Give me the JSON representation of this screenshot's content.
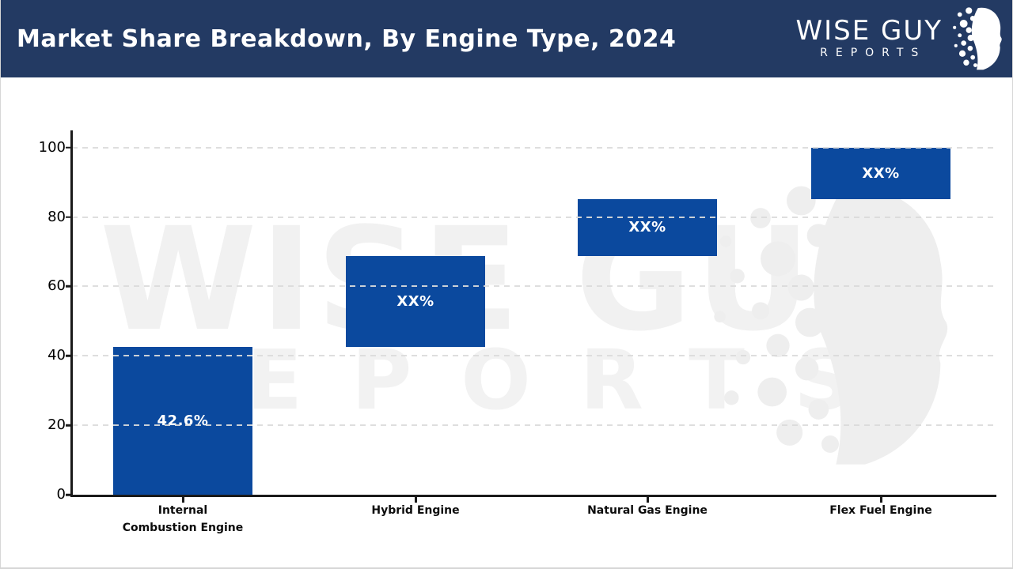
{
  "header": {
    "title": "Market Share Breakdown, By Engine Type, 2024",
    "logo": {
      "line1": "WISE GUY",
      "line2": "REPORTS"
    }
  },
  "watermark": {
    "line1": "WISE GUY",
    "line2": "REPORTS"
  },
  "theme": {
    "header_bg": "#233a63",
    "bar_color": "#0b499e",
    "axis_color": "#1a1a1a",
    "gridline_color": "#d9d9d9",
    "watermark_color": "#f1f1f1",
    "bar_label_color": "#ffffff"
  },
  "chart_data": {
    "type": "bar",
    "variant": "waterfall",
    "title": "Market Share Breakdown, By Engine Type, 2024",
    "xlabel": "",
    "ylabel": "",
    "categories": [
      "Internal Combustion Engine",
      "Hybrid Engine",
      "Natural Gas Engine",
      "Flex Fuel Engine"
    ],
    "category_lines": [
      [
        "Internal",
        "Combustion Engine"
      ],
      [
        "Hybrid Engine"
      ],
      [
        "Natural Gas Engine"
      ],
      [
        "Flex Fuel Engine"
      ]
    ],
    "segments": [
      {
        "category": "Internal Combustion Engine",
        "start": 0,
        "end": 42.6,
        "value_label": "42.6%"
      },
      {
        "category": "Hybrid Engine",
        "start": 42.6,
        "end": 68.8,
        "value_label": "XX%"
      },
      {
        "category": "Natural Gas Engine",
        "start": 68.8,
        "end": 85.2,
        "value_label": "XX%"
      },
      {
        "category": "Flex Fuel Engine",
        "start": 85.2,
        "end": 100,
        "value_label": "XX%"
      }
    ],
    "yticks": [
      0,
      20,
      40,
      60,
      80,
      100
    ],
    "ytick_labels": [
      "0",
      "20",
      "40",
      "60",
      "80",
      "100"
    ],
    "ylim": [
      0,
      105
    ],
    "grid": "horizontal-dashed",
    "legend": "none"
  }
}
